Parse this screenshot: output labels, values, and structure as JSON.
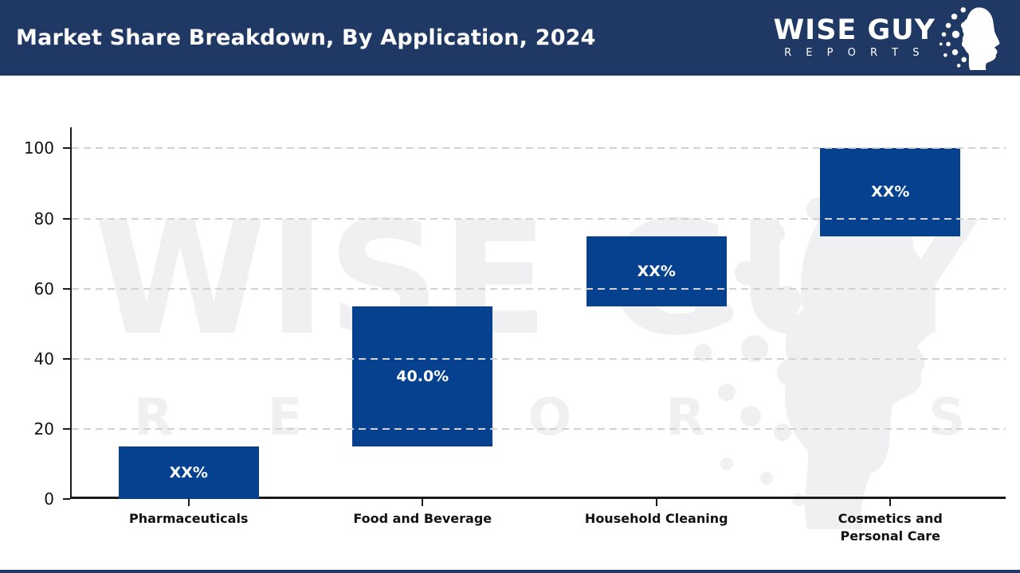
{
  "header": {
    "title": "Market Share Breakdown, By Application, 2024",
    "logo": {
      "wordmark": "WISE GUY",
      "subtext": "R E P O R T S"
    }
  },
  "watermark": {
    "wordmark": "WISE GUY",
    "subtext": "R E P O R T S"
  },
  "chart_data": {
    "type": "bar",
    "subtype": "floating-waterfall",
    "title": "Market Share Breakdown, By Application, 2024",
    "categories": [
      "Pharmaceuticals",
      "Food and Beverage",
      "Household Cleaning",
      "Cosmetics and\nPersonal Care"
    ],
    "bars": [
      {
        "category": "Pharmaceuticals",
        "start": 0,
        "end": 15,
        "label": "XX%"
      },
      {
        "category": "Food and Beverage",
        "start": 15,
        "end": 55,
        "label": "40.0%"
      },
      {
        "category": "Household Cleaning",
        "start": 55,
        "end": 75,
        "label": "XX%"
      },
      {
        "category": "Cosmetics and\nPersonal Care",
        "start": 75,
        "end": 100,
        "label": "XX%"
      }
    ],
    "yticks": [
      0,
      20,
      40,
      60,
      80,
      100
    ],
    "ylim": [
      0,
      106
    ],
    "xlabel": "",
    "ylabel": "",
    "grid": "horizontal-dashed-over-bars",
    "legend": "none",
    "bar_color": "#05418f",
    "bar_label_color": "#ffffff"
  },
  "colors": {
    "header_bg": "#1f3864",
    "footer_bg": "#1f3864",
    "chart_bg": "#ffffff",
    "grid": "#d2d2d2",
    "axis": "#1a1a1a",
    "watermark": "#f0f0f3",
    "bar": "#05418f"
  }
}
